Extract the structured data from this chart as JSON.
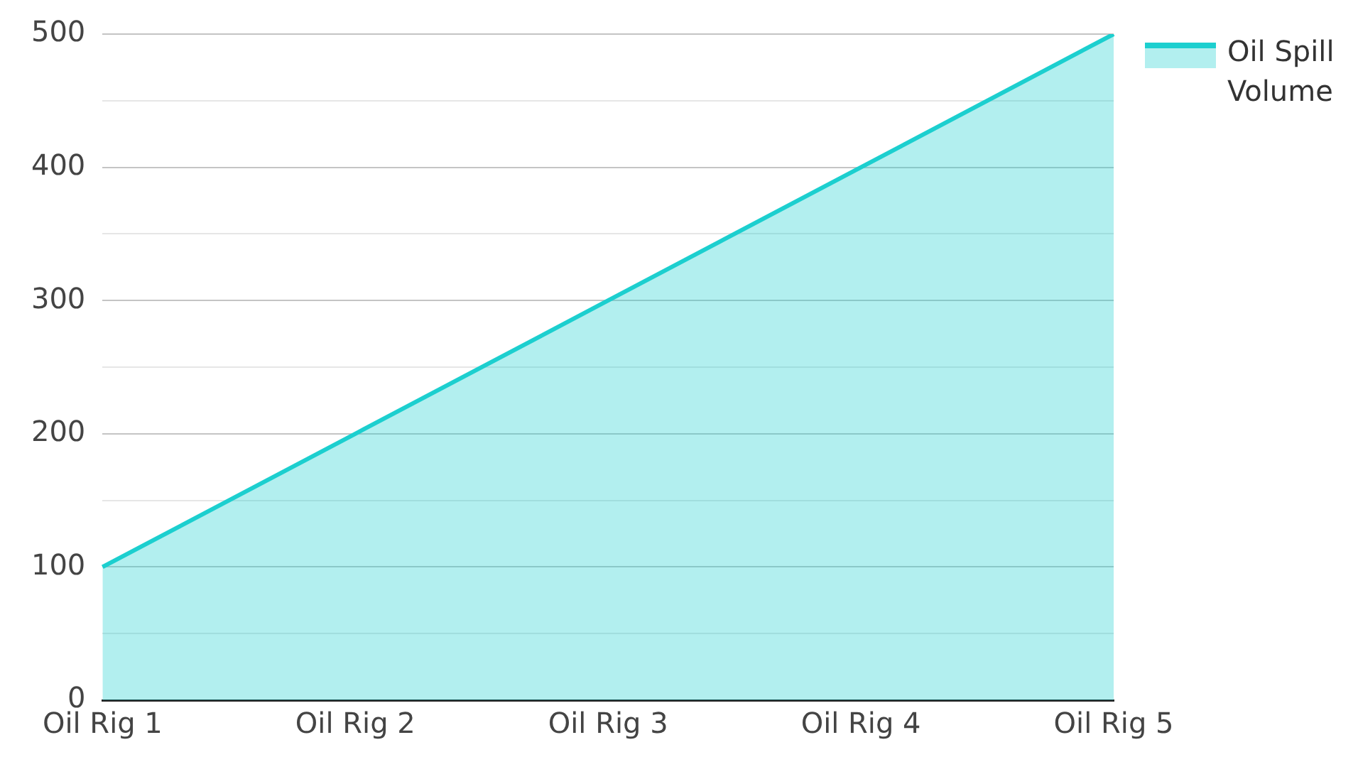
{
  "chart_data": {
    "type": "area",
    "categories": [
      "Oil Rig 1",
      "Oil Rig 2",
      "Oil Rig 3",
      "Oil Rig 4",
      "Oil Rig 5"
    ],
    "series": [
      {
        "name": "Oil Spill Volume",
        "color": "#1ccfcf",
        "values": [
          100,
          200,
          300,
          400,
          500
        ]
      }
    ],
    "ylim": [
      0,
      500
    ],
    "yticks": [
      0,
      {
        "value": 50,
        "label": null
      },
      100,
      {
        "value": 150,
        "label": null
      },
      200,
      {
        "value": 250,
        "label": null
      },
      300,
      {
        "value": 350,
        "label": null
      },
      400,
      {
        "value": 450,
        "label": null
      },
      500
    ],
    "grid": "y",
    "legend": "top right",
    "marker": "none",
    "line_style": "solid"
  }
}
